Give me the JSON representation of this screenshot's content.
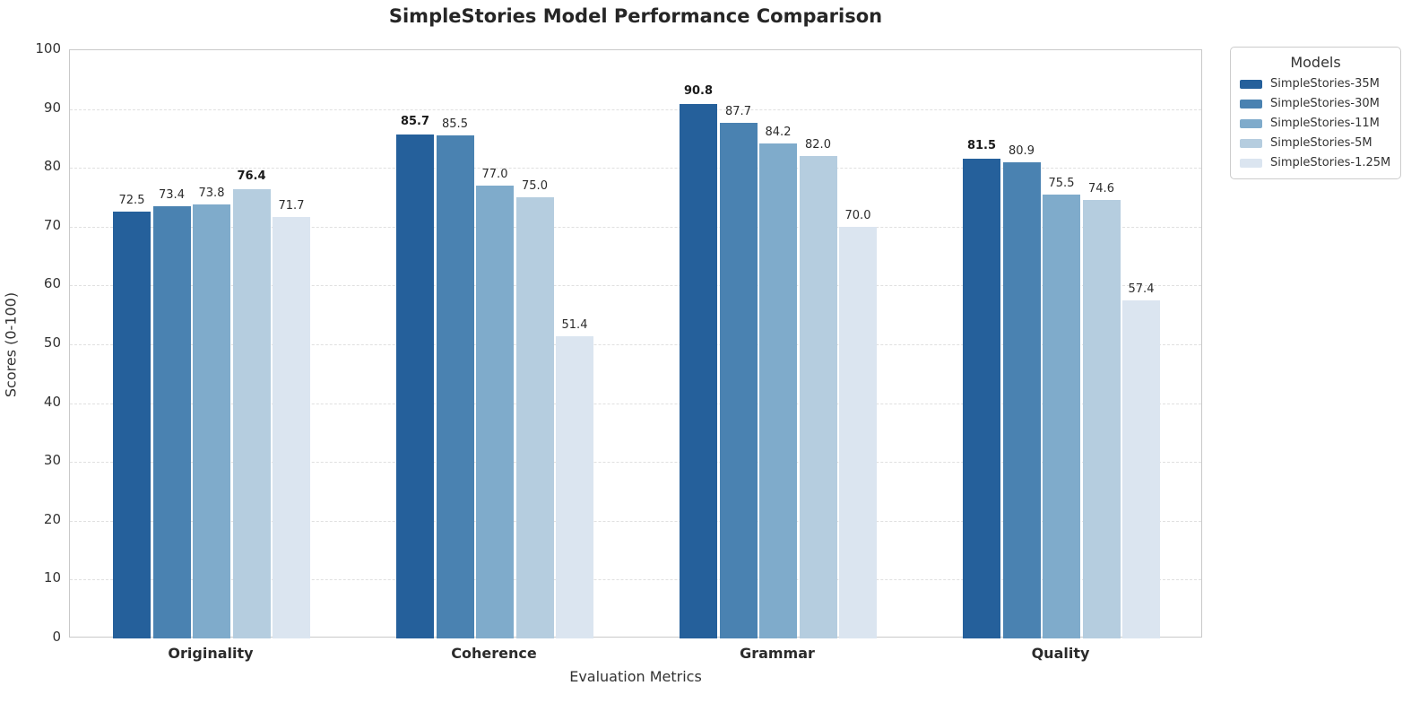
{
  "chart_data": {
    "type": "bar",
    "title": "SimpleStories Model Performance Comparison",
    "xlabel": "Evaluation Metrics",
    "ylabel": "Scores (0-100)",
    "ylim": [
      0,
      100
    ],
    "yticks": [
      0,
      10,
      20,
      30,
      40,
      50,
      60,
      70,
      80,
      90,
      100
    ],
    "grid": "horizontal-dashed",
    "legend_title": "Models",
    "legend_position": "outside-right-top",
    "categories": [
      "Originality",
      "Coherence",
      "Grammar",
      "Quality"
    ],
    "series": [
      {
        "name": "SimpleStories-35M",
        "color": "#25609B",
        "values": [
          72.5,
          85.7,
          90.8,
          81.5
        ]
      },
      {
        "name": "SimpleStories-30M",
        "color": "#4A82B1",
        "values": [
          73.4,
          85.5,
          87.7,
          80.9
        ]
      },
      {
        "name": "SimpleStories-11M",
        "color": "#7FABCB",
        "values": [
          73.8,
          77.0,
          84.2,
          75.5
        ]
      },
      {
        "name": "SimpleStories-5M",
        "color": "#B5CDDF",
        "values": [
          76.4,
          75.0,
          82.0,
          74.6
        ]
      },
      {
        "name": "SimpleStories-1.25M",
        "color": "#DBE5F0",
        "values": [
          71.7,
          51.4,
          70.0,
          57.4
        ]
      }
    ],
    "value_label_decimals": 1,
    "bold_max_per_category": true
  }
}
